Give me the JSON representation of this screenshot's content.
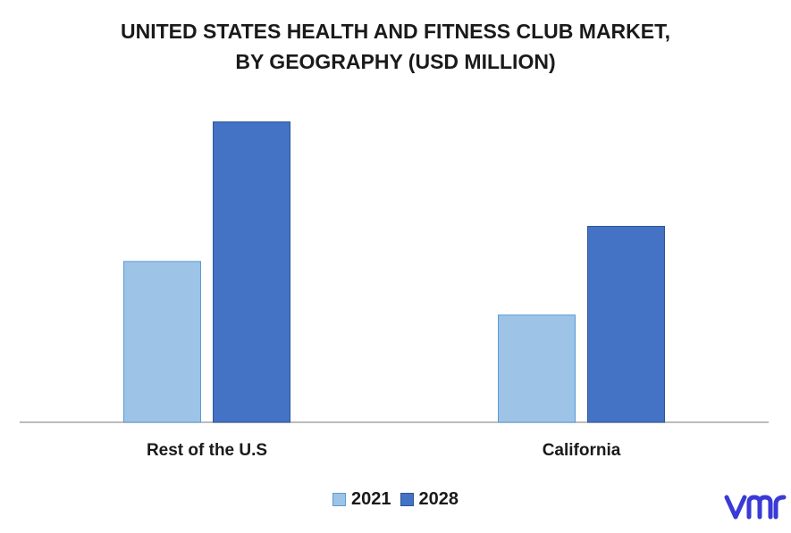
{
  "title_line1": "UNITED STATES HEALTH AND FITNESS CLUB MARKET,",
  "title_line2": "BY GEOGRAPHY (USD MILLION)",
  "colors": {
    "s2021": "#9dc3e6",
    "s2028": "#4472c4",
    "axis": "#a6a6a6",
    "text": "#1a1a1a"
  },
  "logo": {
    "icon": "vmr-logo-icon",
    "text": "vmr",
    "color": "#3a3ad6"
  },
  "chart_data": {
    "type": "bar",
    "title": "UNITED STATES HEALTH AND FITNESS CLUB MARKET, BY GEOGRAPHY (USD MILLION)",
    "categories": [
      "Rest of the U.S",
      "California"
    ],
    "series": [
      {
        "name": "2021",
        "values": [
          174,
          116
        ]
      },
      {
        "name": "2028",
        "values": [
          325,
          212
        ]
      }
    ],
    "ylim": [
      0,
      340
    ],
    "grid": false,
    "legend": "bottom"
  }
}
